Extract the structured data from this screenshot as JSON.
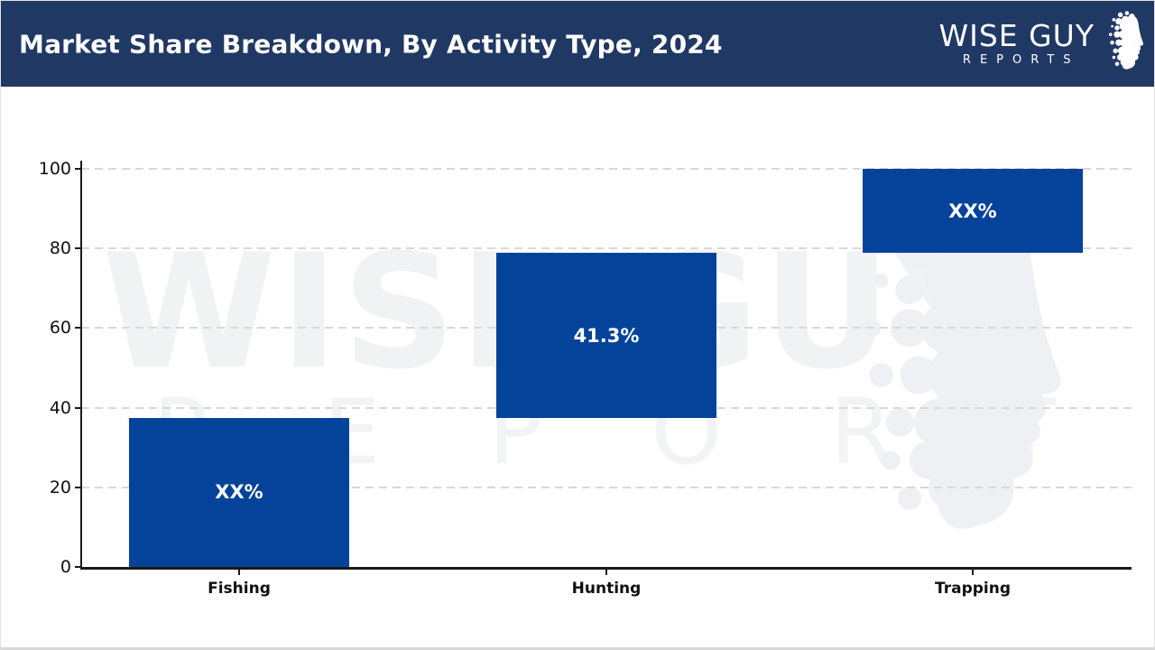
{
  "header": {
    "title": "Market Share Breakdown, By Activity Type, 2024",
    "logo": {
      "name": "WISE GUY",
      "sub": "REPORTS"
    }
  },
  "watermark": {
    "name": "WISE GUY",
    "sub": "R E P O R T S"
  },
  "colors": {
    "header_bg": "#203864",
    "bar": "#05439B",
    "grid": "#d8d8d8",
    "axis": "#1a1a1a",
    "watermark": "#f1f2f4",
    "bar_label": "#ffffff"
  },
  "chart_data": {
    "type": "bar",
    "subtype": "waterfall",
    "title": "Market Share Breakdown, By Activity Type, 2024",
    "categories": [
      "Fishing",
      "Hunting",
      "Trapping"
    ],
    "segments": [
      {
        "category": "Fishing",
        "start": 0,
        "end": 37.5,
        "value": 37.5,
        "label": "XX%"
      },
      {
        "category": "Hunting",
        "start": 37.5,
        "end": 78.8,
        "value": 41.3,
        "label": "41.3%"
      },
      {
        "category": "Trapping",
        "start": 78.8,
        "end": 100,
        "value": 21.2,
        "label": "XX%"
      }
    ],
    "yticks": [
      0,
      20,
      40,
      60,
      80,
      100
    ],
    "ylim": [
      0,
      102
    ],
    "xlabel": "",
    "ylabel": "",
    "grid": "horizontal-dashed",
    "legend": null,
    "bar_color": "#05439B",
    "label_color": "#ffffff"
  }
}
